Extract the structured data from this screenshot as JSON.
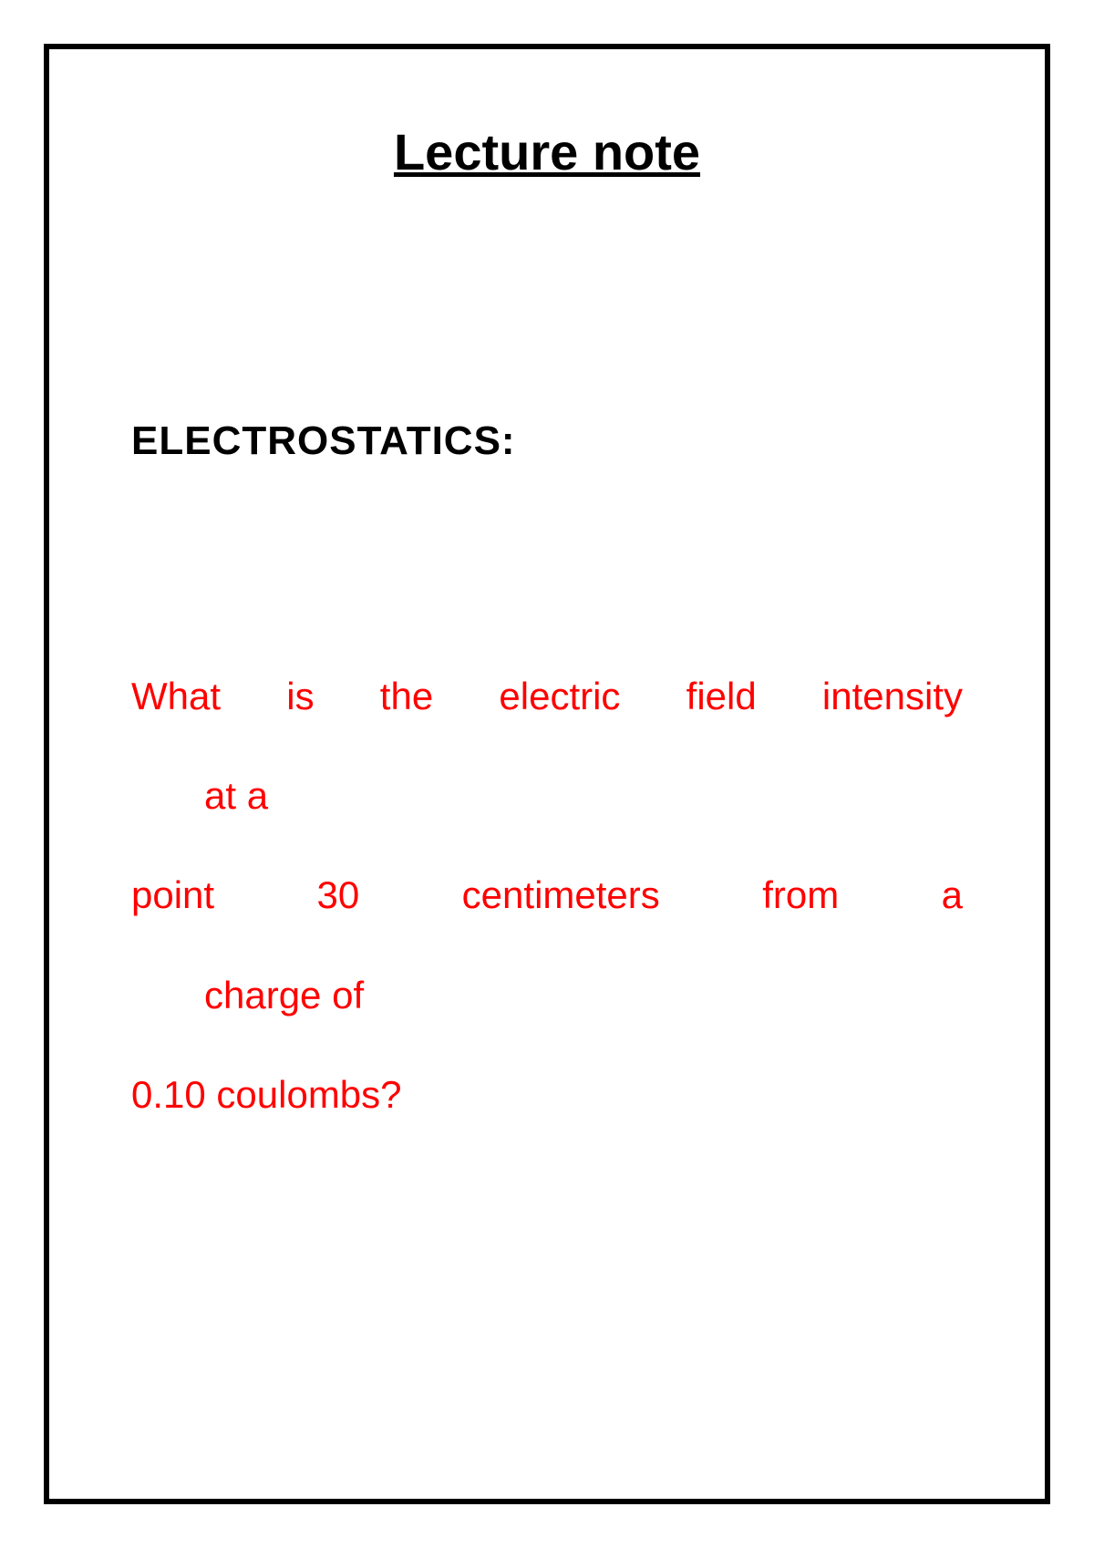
{
  "document": {
    "title": "Lecture note",
    "section_heading": "ELECTROSTATICS:",
    "question": {
      "line1": "What is the electric field intensity",
      "line2": "at a",
      "line3": "point 30 centimeters from a",
      "line4": "charge of",
      "line5": "0.10 coulombs?"
    },
    "colors": {
      "border": "#000000",
      "title_text": "#000000",
      "heading_text": "#000000",
      "question_text": "#ff0000",
      "background": "#ffffff"
    },
    "typography": {
      "title_fontsize": 56,
      "heading_fontsize": 44,
      "question_fontsize": 42,
      "title_weight": "bold",
      "heading_weight": "bold",
      "question_weight": "normal"
    }
  }
}
